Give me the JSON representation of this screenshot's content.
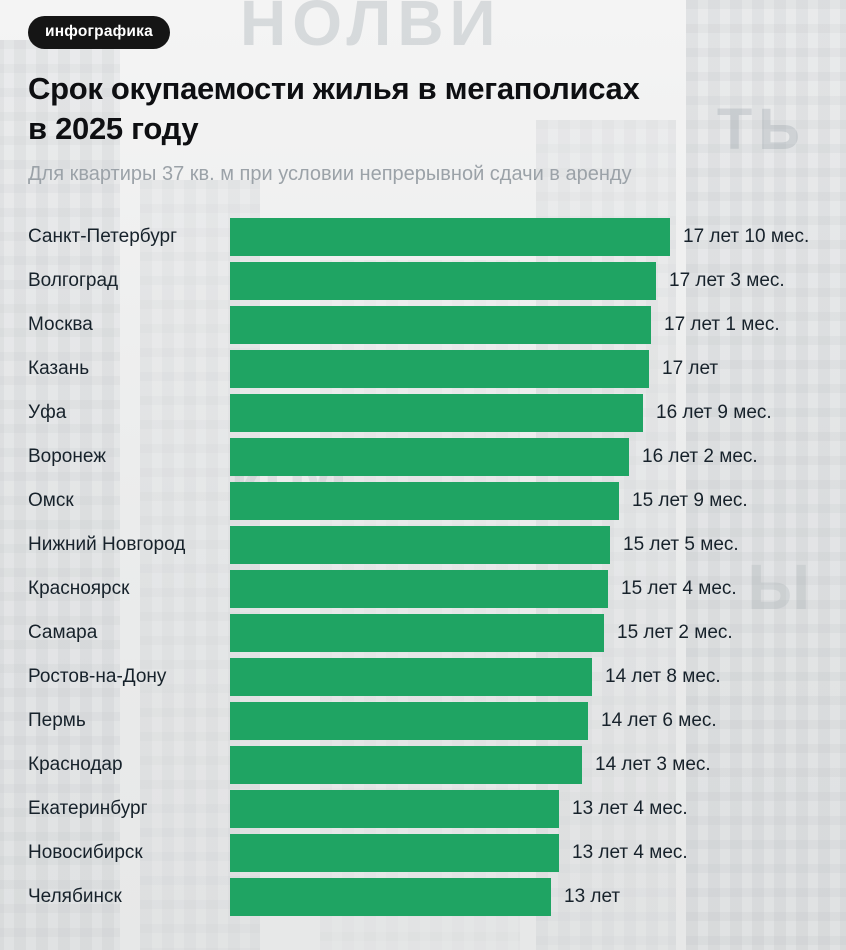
{
  "header": {
    "badge": "инфографика",
    "title_line1": "Срок окупаемости жилья в мегаполисах",
    "title_line2": "в 2025 году",
    "subtitle": "Для квартиры 37 кв. м при условии непрерывной сдачи в аренду"
  },
  "accent_color": "#1fa463",
  "watermarks": [
    "НОЛВИ",
    "ТЬ",
    "ИМ",
    "Ы"
  ],
  "chart_data": {
    "type": "bar",
    "orientation": "horizontal",
    "title": "Срок окупаемости жилья в мегаполисах в 2025 году",
    "subtitle": "Для квартиры 37 кв. м при условии непрерывной сдачи в аренду",
    "unit": "months (displayed as years + months)",
    "max_months": 214,
    "bar_color": "#1fa463",
    "legend": "none",
    "grid": false,
    "rows": [
      {
        "city": "Санкт-Петербург",
        "months": 214,
        "label": "17 лет 10 мес."
      },
      {
        "city": "Волгоград",
        "months": 207,
        "label": "17 лет 3 мес."
      },
      {
        "city": "Москва",
        "months": 205,
        "label": "17 лет 1 мес."
      },
      {
        "city": "Казань",
        "months": 204,
        "label": "17 лет"
      },
      {
        "city": "Уфа",
        "months": 201,
        "label": "16 лет 9 мес."
      },
      {
        "city": "Воронеж",
        "months": 194,
        "label": "16 лет 2 мес."
      },
      {
        "city": "Омск",
        "months": 189,
        "label": "15 лет 9 мес."
      },
      {
        "city": "Нижний Новгород",
        "months": 185,
        "label": "15 лет 5 мес."
      },
      {
        "city": "Красноярск",
        "months": 184,
        "label": "15 лет 4 мес."
      },
      {
        "city": "Самара",
        "months": 182,
        "label": "15 лет 2 мес."
      },
      {
        "city": "Ростов-на-Дону",
        "months": 176,
        "label": "14 лет 8 мес."
      },
      {
        "city": "Пермь",
        "months": 174,
        "label": "14 лет 6 мес."
      },
      {
        "city": "Краснодар",
        "months": 171,
        "label": "14 лет 3 мес."
      },
      {
        "city": "Екатеринбург",
        "months": 160,
        "label": "13 лет 4 мес."
      },
      {
        "city": "Новосибирск",
        "months": 160,
        "label": "13 лет 4 мес."
      },
      {
        "city": "Челябинск",
        "months": 156,
        "label": "13 лет"
      }
    ]
  }
}
